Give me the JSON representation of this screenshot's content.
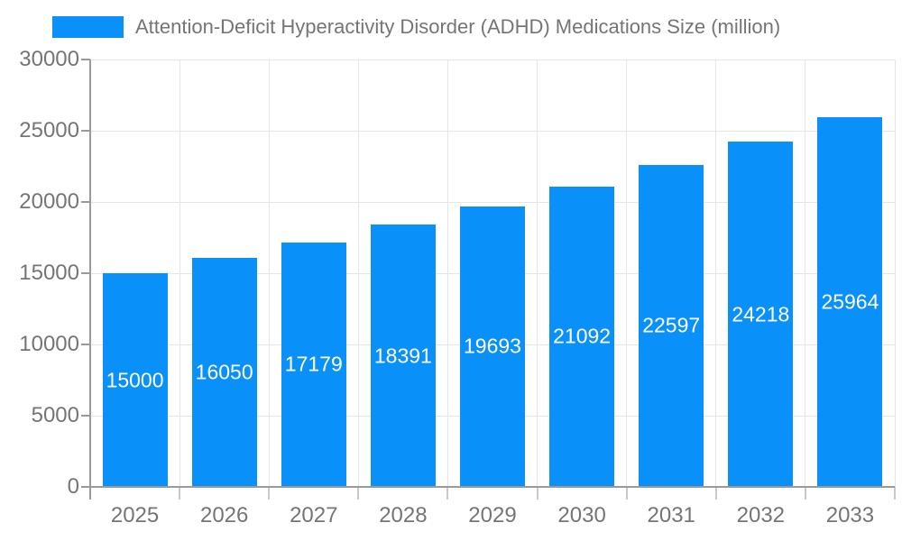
{
  "chart_data": {
    "type": "bar",
    "title": "Attention-Deficit Hyperactivity Disorder (ADHD) Medications Size (million)",
    "categories": [
      "2025",
      "2026",
      "2027",
      "2028",
      "2029",
      "2030",
      "2031",
      "2032",
      "2033"
    ],
    "values": [
      15000,
      16050,
      17179,
      18391,
      19693,
      21092,
      22597,
      24218,
      25964
    ],
    "xlabel": "",
    "ylabel": "",
    "ylim": [
      0,
      30000
    ],
    "yticks": [
      0,
      5000,
      10000,
      15000,
      20000,
      25000,
      30000
    ],
    "grid": true,
    "legend_position": "top-left",
    "colors": {
      "bar": "#0a90f9",
      "bar_value_text": "#ffffff",
      "axis_text": "#757575",
      "gridline": "#e6e6e6",
      "axis_line": "#9a9a9a"
    }
  }
}
